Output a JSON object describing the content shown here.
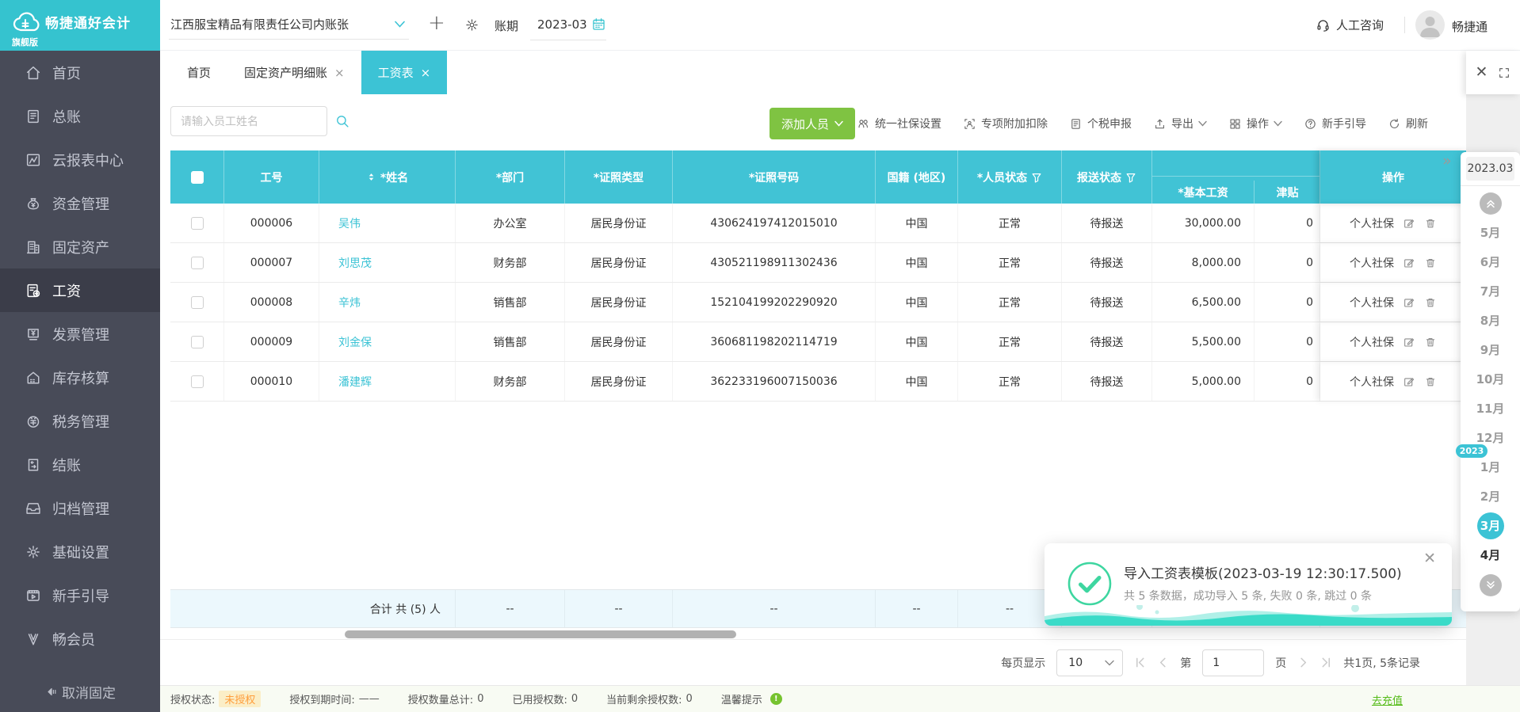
{
  "brand": {
    "name": "畅捷通好会计",
    "edition": "旗舰版"
  },
  "topbar": {
    "company": "江西服宝精品有限责任公司内账张",
    "period_label": "账期",
    "period_value": "2023-03",
    "consult_label": "人工咨询",
    "username": "畅捷通"
  },
  "sidebar": {
    "items": [
      {
        "label": "首页",
        "icon": "home-icon",
        "active": false
      },
      {
        "label": "总账",
        "icon": "ledger-icon",
        "active": false
      },
      {
        "label": "云报表中心",
        "icon": "report-center-icon",
        "active": false
      },
      {
        "label": "资金管理",
        "icon": "funds-icon",
        "active": false
      },
      {
        "label": "固定资产",
        "icon": "fixed-assets-icon",
        "active": false
      },
      {
        "label": "工资",
        "icon": "salary-icon",
        "active": true
      },
      {
        "label": "发票管理",
        "icon": "invoice-icon",
        "active": false
      },
      {
        "label": "库存核算",
        "icon": "inventory-icon",
        "active": false
      },
      {
        "label": "税务管理",
        "icon": "tax-icon",
        "active": false
      },
      {
        "label": "结账",
        "icon": "closing-icon",
        "active": false
      },
      {
        "label": "归档管理",
        "icon": "archive-icon",
        "active": false
      },
      {
        "label": "基础设置",
        "icon": "settings-icon",
        "active": false
      },
      {
        "label": "新手引导",
        "icon": "guide-icon",
        "active": false
      },
      {
        "label": "畅会员",
        "icon": "member-icon",
        "active": false
      }
    ],
    "unpin_label": "取消固定"
  },
  "tabs": [
    {
      "label": "首页",
      "closable": false,
      "active": false
    },
    {
      "label": "固定资产明细账",
      "closable": true,
      "active": false
    },
    {
      "label": "工资表",
      "closable": true,
      "active": true
    }
  ],
  "toolbar": {
    "search_placeholder": "请输入员工姓名",
    "add_button": "添加人员",
    "buttons": [
      {
        "label": "统一社保设置",
        "icon": "social-security-icon",
        "dropdown": false
      },
      {
        "label": "专项附加扣除",
        "icon": "deduction-icon",
        "dropdown": false
      },
      {
        "label": "个税申报",
        "icon": "tax-declare-icon",
        "dropdown": false
      },
      {
        "label": "导出",
        "icon": "export-icon",
        "dropdown": true
      },
      {
        "label": "操作",
        "icon": "operate-icon",
        "dropdown": true
      },
      {
        "label": "新手引导",
        "icon": "question-icon",
        "dropdown": false
      },
      {
        "label": "刷新",
        "icon": "refresh-icon",
        "dropdown": false
      }
    ]
  },
  "table": {
    "columns": [
      {
        "label": "工号"
      },
      {
        "label": "*姓名",
        "sort": true
      },
      {
        "label": "*部门"
      },
      {
        "label": "*证照类型"
      },
      {
        "label": "*证照号码"
      },
      {
        "label": "国籍 (地区)"
      },
      {
        "label": "*人员状态",
        "filter": true
      },
      {
        "label": "报送状态",
        "filter": true
      },
      {
        "label": "*基本工资"
      },
      {
        "label": "津贴"
      },
      {
        "label": "操作"
      }
    ],
    "rows": [
      {
        "id": "000006",
        "name": "吴伟",
        "dept": "办公室",
        "cert_type": "居民身份证",
        "cert_no": "430624197412015010",
        "nation": "中国",
        "status": "正常",
        "report": "待报送",
        "salary": "30,000.00",
        "allowance": "0",
        "social": "个人社保"
      },
      {
        "id": "000007",
        "name": "刘思茂",
        "dept": "财务部",
        "cert_type": "居民身份证",
        "cert_no": "430521198911302436",
        "nation": "中国",
        "status": "正常",
        "report": "待报送",
        "salary": "8,000.00",
        "allowance": "0",
        "social": "个人社保"
      },
      {
        "id": "000008",
        "name": "辛炜",
        "dept": "销售部",
        "cert_type": "居民身份证",
        "cert_no": "152104199202290920",
        "nation": "中国",
        "status": "正常",
        "report": "待报送",
        "salary": "6,500.00",
        "allowance": "0",
        "social": "个人社保"
      },
      {
        "id": "000009",
        "name": "刘金保",
        "dept": "销售部",
        "cert_type": "居民身份证",
        "cert_no": "360681198202114719",
        "nation": "中国",
        "status": "正常",
        "report": "待报送",
        "salary": "5,500.00",
        "allowance": "0",
        "social": "个人社保"
      },
      {
        "id": "000010",
        "name": "潘建辉",
        "dept": "财务部",
        "cert_type": "居民身份证",
        "cert_no": "362233196007150036",
        "nation": "中国",
        "status": "正常",
        "report": "待报送",
        "salary": "5,000.00",
        "allowance": "0",
        "social": "个人社保"
      }
    ],
    "summary": {
      "label": "合计 共 (5) 人",
      "placeholders": [
        "--",
        "--",
        "--",
        "--",
        "--"
      ]
    }
  },
  "datepanel": {
    "current": "2023.03",
    "year_badge": "2023",
    "months": [
      "5月",
      "6月",
      "7月",
      "8月",
      "9月",
      "10月",
      "11月",
      "12月",
      "1月",
      "2月",
      "3月",
      "4月"
    ],
    "selected_month": "3月",
    "next_month": "4月"
  },
  "toast": {
    "title": "导入工资表模板(2023-03-19 12:30:17.500)",
    "message": "共 5 条数据，成功导入 5 条, 失败 0 条, 跳过 0 条"
  },
  "pagination": {
    "per_page_label": "每页显示",
    "per_page": "10",
    "page_prefix": "第",
    "page_value": "1",
    "page_suffix": "页",
    "total_text": "共1页, 5条记录"
  },
  "statusbar": {
    "items": [
      {
        "label": "授权状态:",
        "value": "未授权",
        "highlight": true
      },
      {
        "label": "授权到期时间:",
        "value": "——"
      },
      {
        "label": "授权数量总计:",
        "value": "0"
      },
      {
        "label": "已用授权数:",
        "value": "0"
      },
      {
        "label": "当前剩余授权数:",
        "value": "0"
      },
      {
        "label": "温馨提示",
        "value": "",
        "info": true
      }
    ],
    "recharge_label": "去充值"
  },
  "colors": {
    "primary_teal": "#3cc3d5",
    "sidebar_dark": "#484b58",
    "button_green": "#7fc342",
    "warning_orange": "#ff9d3b",
    "success_green": "#3ed6a0",
    "recharge_green": "#55bb18"
  }
}
